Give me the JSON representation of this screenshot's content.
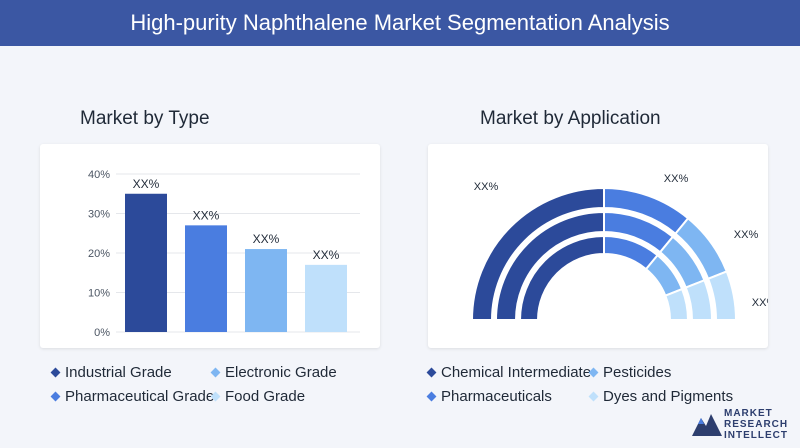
{
  "header": {
    "title": "High-purity Naphthalene Market Segmentation Analysis"
  },
  "left_panel": {
    "title": "Market by Type"
  },
  "right_panel": {
    "title": "Market by Application"
  },
  "colors": {
    "banner": "#3b57a3",
    "c1": "#2c4a9a",
    "c2": "#4a7de0",
    "c3": "#7eb6f2",
    "c4": "#bfe0fb"
  },
  "logo": {
    "line1": "MARKET",
    "line2": "RESEARCH",
    "line3": "INTELLECT"
  },
  "chart_data": [
    {
      "type": "bar",
      "title": "Market by Type",
      "categories": [
        "Industrial Grade",
        "Electronic Grade",
        "Pharmaceutical Grade",
        "Food Grade"
      ],
      "values": [
        35,
        27,
        21,
        17
      ],
      "data_labels": [
        "XX%",
        "XX%",
        "XX%",
        "XX%"
      ],
      "yticks": [
        "0%",
        "10%",
        "20%",
        "30%",
        "40%"
      ],
      "ylim": [
        0,
        40
      ],
      "grid": true,
      "legend_placement": "bottom"
    },
    {
      "type": "pie",
      "title": "Market by Application",
      "style": "half-donut",
      "categories": [
        "Chemical Intermediate",
        "Pesticides",
        "Pharmaceuticals",
        "Dyes and Pigments"
      ],
      "values": [
        50,
        22,
        16,
        12
      ],
      "data_labels": [
        "XX%",
        "XX%",
        "XX%",
        "XX%"
      ],
      "legend_placement": "bottom"
    }
  ]
}
